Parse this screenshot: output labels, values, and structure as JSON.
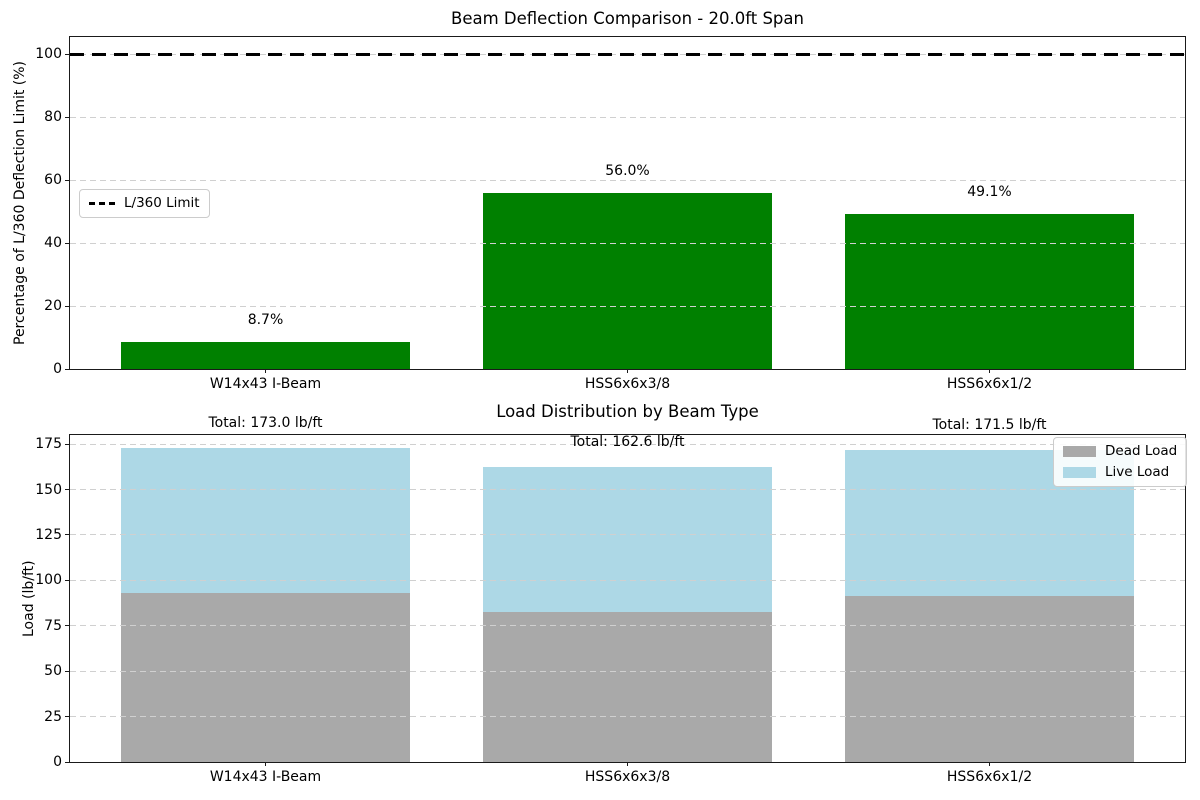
{
  "chart_data": [
    {
      "type": "bar",
      "title": "Beam Deflection Comparison - 20.0ft Span",
      "ylabel": "Percentage of L/360 Deflection Limit (%)",
      "xlabel": "",
      "categories": [
        "W14x43 I-Beam",
        "HSS6x6x3/8",
        "HSS6x6x1/2"
      ],
      "values": [
        8.7,
        56.0,
        49.1
      ],
      "bar_labels": [
        "8.7%",
        "56.0%",
        "49.1%"
      ],
      "bar_color": "#008000",
      "ylim": [
        0,
        105.4
      ],
      "yticks": [
        0,
        20,
        40,
        60,
        80,
        100
      ],
      "grid": true,
      "limit_line": {
        "y": 100,
        "label": "L/360 Limit",
        "color": "#000000",
        "style": "dashed"
      },
      "legend": {
        "location": "center left",
        "items": [
          {
            "label": "L/360 Limit",
            "marker": "dashed-line",
            "color": "#000000"
          }
        ]
      }
    },
    {
      "type": "stacked-bar",
      "title": "Load Distribution by Beam Type",
      "ylabel": "Load (lb/ft)",
      "xlabel": "",
      "categories": [
        "W14x43 I-Beam",
        "HSS6x6x3/8",
        "HSS6x6x1/2"
      ],
      "series": [
        {
          "name": "Dead Load",
          "color": "#a9a9a9",
          "values": [
            93.0,
            82.6,
            91.5
          ]
        },
        {
          "name": "Live Load",
          "color": "#add8e6",
          "values": [
            80.0,
            80.0,
            80.0
          ]
        }
      ],
      "totals": [
        173.0,
        162.6,
        171.5
      ],
      "bar_labels": [
        "Total: 173.0 lb/ft",
        "Total: 162.6 lb/ft",
        "Total: 171.5 lb/ft"
      ],
      "ylim": [
        0,
        180
      ],
      "yticks": [
        0,
        25,
        50,
        75,
        100,
        125,
        150,
        175
      ],
      "grid": true,
      "legend": {
        "location": "upper right",
        "items": [
          {
            "label": "Dead Load",
            "marker": "patch",
            "color": "#a9a9a9"
          },
          {
            "label": "Live Load",
            "marker": "patch",
            "color": "#add8e6"
          }
        ]
      }
    }
  ]
}
